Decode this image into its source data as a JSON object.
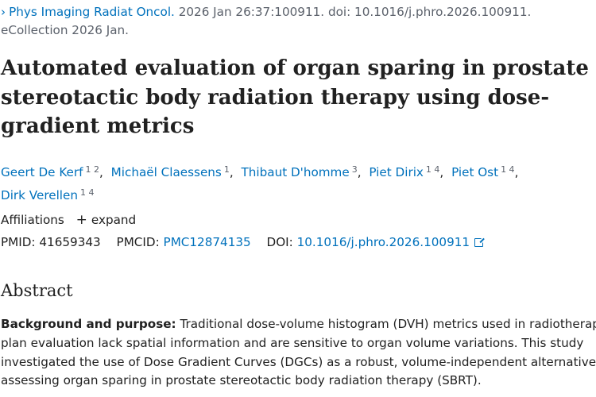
{
  "citation": {
    "journal": "Phys Imaging Radiat Oncol.",
    "details": "2026 Jan 26:37:100911. doi: 10.1016/j.phro.2026.100911.",
    "ecollection": "eCollection 2026 Jan."
  },
  "title": {
    "line1": "Automated evaluation of organ sparing in prostate",
    "line2": "stereotactic body radiation therapy using dose-",
    "line3": "gradient metrics"
  },
  "authors": [
    {
      "name": "Geert De Kerf",
      "affiliations": "1 2"
    },
    {
      "name": "Michaël Claessens",
      "affiliations": "1"
    },
    {
      "name": "Thibaut D'homme",
      "affiliations": "3"
    },
    {
      "name": "Piet Dirix",
      "affiliations": "1 4"
    },
    {
      "name": "Piet Ost",
      "affiliations": "1 4"
    },
    {
      "name": "Dirk Verellen",
      "affiliations": "1 4"
    }
  ],
  "affiliations_section": {
    "label": "Affiliations",
    "expand_icon": "plus-icon",
    "expand_label": "expand"
  },
  "identifiers": {
    "pmid_label": "PMID:",
    "pmid": "41659343",
    "pmcid_label": "PMCID:",
    "pmcid": "PMC12874135",
    "doi_label": "DOI:",
    "doi": "10.1016/j.phro.2026.100911",
    "doi_icon": "external-link-icon"
  },
  "abstract": {
    "heading": "Abstract",
    "background_label": "Background and purpose:",
    "lines": [
      "Traditional dose-volume histogram (DVH) metrics used in radiotherapy",
      "plan evaluation lack spatial information and are sensitive to organ volume variations. This study",
      "investigated the use of Dose Gradient Curves (DGCs) as a robust, volume-independent alternative for",
      "assessing organ sparing in prostate stereotactic body radiation therapy (SBRT)."
    ]
  },
  "colors": {
    "link": "#0071bc",
    "text": "#212121",
    "muted": "#5b616b"
  }
}
